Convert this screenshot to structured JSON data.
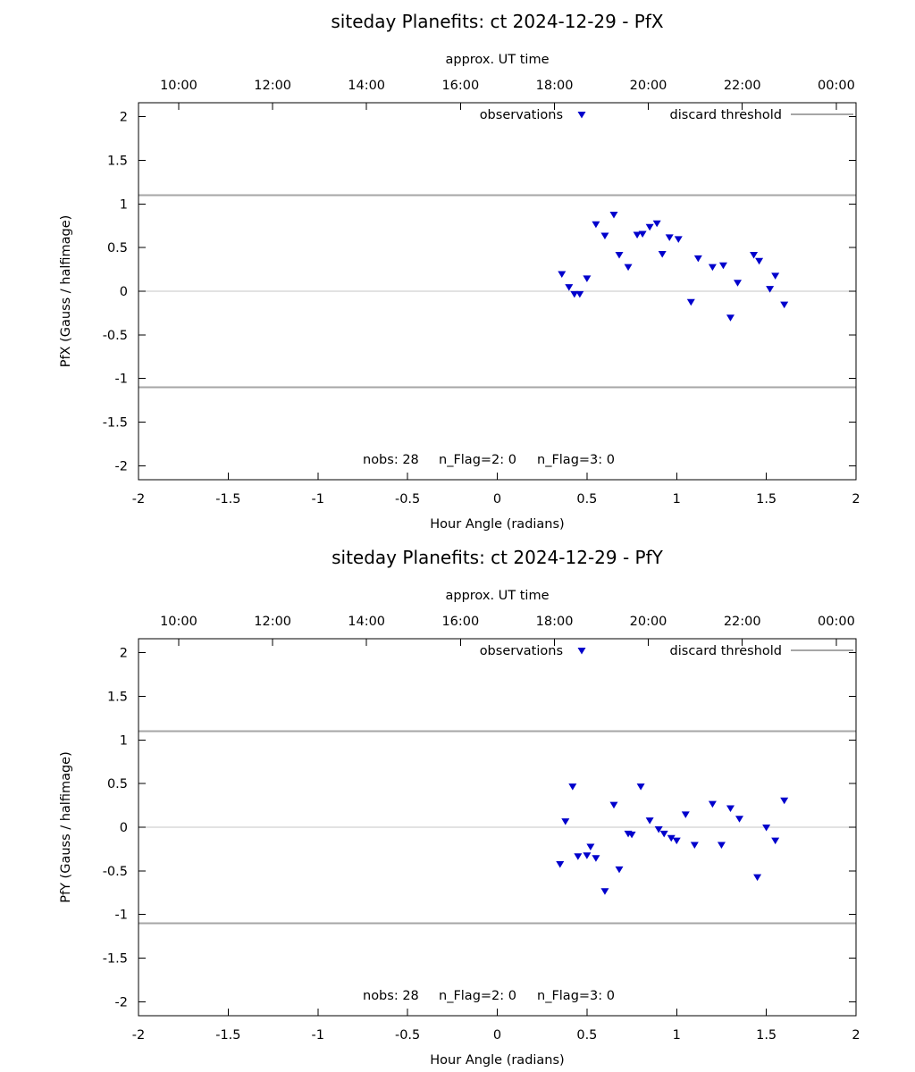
{
  "page": {
    "background": "#ffffff"
  },
  "chart_data": [
    {
      "type": "scatter",
      "title": "siteday Planefits:  ct  2024-12-29  -  PfX",
      "top_axis_label": "approx. UT time",
      "top_ticks": [
        {
          "label": "10:00",
          "ha": -1.776
        },
        {
          "label": "12:00",
          "ha": -1.252
        },
        {
          "label": "14:00",
          "ha": -0.729
        },
        {
          "label": "16:00",
          "ha": -0.205
        },
        {
          "label": "18:00",
          "ha": 0.319
        },
        {
          "label": "20:00",
          "ha": 0.842
        },
        {
          "label": "22:00",
          "ha": 1.366
        },
        {
          "label": "00:00",
          "ha": 1.89
        }
      ],
      "xlabel": "Hour Angle (radians)",
      "ylabel": "PfX (Gauss / halfimage)",
      "xlim": [
        -2,
        2
      ],
      "ylim_display": [
        -2.16,
        2.16
      ],
      "xticks": [
        {
          "v": -2,
          "label": "-2"
        },
        {
          "v": -1.5,
          "label": "-1.5"
        },
        {
          "v": -1,
          "label": "-1"
        },
        {
          "v": -0.5,
          "label": "-0.5"
        },
        {
          "v": 0,
          "label": "0"
        },
        {
          "v": 0.5,
          "label": "0.5"
        },
        {
          "v": 1,
          "label": "1"
        },
        {
          "v": 1.5,
          "label": "1.5"
        },
        {
          "v": 2,
          "label": "2"
        }
      ],
      "yticks": [
        {
          "v": 2,
          "label": "2"
        },
        {
          "v": 1.5,
          "label": "1.5"
        },
        {
          "v": 1,
          "label": "1"
        },
        {
          "v": 0.5,
          "label": "0.5"
        },
        {
          "v": 0,
          "label": "0"
        },
        {
          "v": -0.5,
          "label": "-0.5"
        },
        {
          "v": -1,
          "label": "-1"
        },
        {
          "v": -1.5,
          "label": "-1.5"
        },
        {
          "v": -2,
          "label": "-2"
        }
      ],
      "thresholds": [
        1.1,
        -1.1
      ],
      "zero_line": 0,
      "legend": [
        {
          "label": "observations",
          "type": "marker"
        },
        {
          "label": "discard threshold",
          "type": "line"
        }
      ],
      "annotation_parts": [
        "nobs: 28",
        "n_Flag=2: 0",
        "n_Flag=3: 0"
      ],
      "marker_color": "#0000cc",
      "threshold_color": "#a6a6a6",
      "zero_line_color": "#c4c4c4",
      "points": [
        [
          0.36,
          0.2
        ],
        [
          0.4,
          0.05
        ],
        [
          0.43,
          -0.03
        ],
        [
          0.46,
          -0.03
        ],
        [
          0.5,
          0.15
        ],
        [
          0.55,
          0.77
        ],
        [
          0.6,
          0.64
        ],
        [
          0.65,
          0.88
        ],
        [
          0.68,
          0.42
        ],
        [
          0.73,
          0.28
        ],
        [
          0.78,
          0.65
        ],
        [
          0.81,
          0.66
        ],
        [
          0.85,
          0.74
        ],
        [
          0.89,
          0.78
        ],
        [
          0.92,
          0.43
        ],
        [
          0.96,
          0.62
        ],
        [
          1.01,
          0.6
        ],
        [
          1.08,
          -0.12
        ],
        [
          1.12,
          0.38
        ],
        [
          1.2,
          0.28
        ],
        [
          1.26,
          0.3
        ],
        [
          1.3,
          -0.3
        ],
        [
          1.34,
          0.1
        ],
        [
          1.43,
          0.42
        ],
        [
          1.46,
          0.35
        ],
        [
          1.52,
          0.03
        ],
        [
          1.55,
          0.18
        ],
        [
          1.6,
          -0.15
        ]
      ]
    },
    {
      "type": "scatter",
      "title": "siteday Planefits:  ct  2024-12-29  -  PfY",
      "top_axis_label": "approx. UT time",
      "top_ticks": [
        {
          "label": "10:00",
          "ha": -1.776
        },
        {
          "label": "12:00",
          "ha": -1.252
        },
        {
          "label": "14:00",
          "ha": -0.729
        },
        {
          "label": "16:00",
          "ha": -0.205
        },
        {
          "label": "18:00",
          "ha": 0.319
        },
        {
          "label": "20:00",
          "ha": 0.842
        },
        {
          "label": "22:00",
          "ha": 1.366
        },
        {
          "label": "00:00",
          "ha": 1.89
        }
      ],
      "xlabel": "Hour Angle (radians)",
      "ylabel": "PfY (Gauss / halfimage)",
      "xlim": [
        -2,
        2
      ],
      "ylim_display": [
        -2.16,
        2.16
      ],
      "xticks": [
        {
          "v": -2,
          "label": "-2"
        },
        {
          "v": -1.5,
          "label": "-1.5"
        },
        {
          "v": -1,
          "label": "-1"
        },
        {
          "v": -0.5,
          "label": "-0.5"
        },
        {
          "v": 0,
          "label": "0"
        },
        {
          "v": 0.5,
          "label": "0.5"
        },
        {
          "v": 1,
          "label": "1"
        },
        {
          "v": 1.5,
          "label": "1.5"
        },
        {
          "v": 2,
          "label": "2"
        }
      ],
      "yticks": [
        {
          "v": 2,
          "label": "2"
        },
        {
          "v": 1.5,
          "label": "1.5"
        },
        {
          "v": 1,
          "label": "1"
        },
        {
          "v": 0.5,
          "label": "0.5"
        },
        {
          "v": 0,
          "label": "0"
        },
        {
          "v": -0.5,
          "label": "-0.5"
        },
        {
          "v": -1,
          "label": "-1"
        },
        {
          "v": -1.5,
          "label": "-1.5"
        },
        {
          "v": -2,
          "label": "-2"
        }
      ],
      "thresholds": [
        1.1,
        -1.1
      ],
      "zero_line": 0,
      "legend": [
        {
          "label": "observations",
          "type": "marker"
        },
        {
          "label": "discard threshold",
          "type": "line"
        }
      ],
      "annotation_parts": [
        "nobs: 28",
        "n_Flag=2: 0",
        "n_Flag=3: 0"
      ],
      "marker_color": "#0000cc",
      "threshold_color": "#a6a6a6",
      "zero_line_color": "#c4c4c4",
      "points": [
        [
          0.35,
          -0.42
        ],
        [
          0.38,
          0.07
        ],
        [
          0.42,
          0.47
        ],
        [
          0.45,
          -0.33
        ],
        [
          0.5,
          -0.32
        ],
        [
          0.52,
          -0.22
        ],
        [
          0.55,
          -0.35
        ],
        [
          0.6,
          -0.73
        ],
        [
          0.65,
          0.26
        ],
        [
          0.68,
          -0.48
        ],
        [
          0.73,
          -0.07
        ],
        [
          0.75,
          -0.08
        ],
        [
          0.8,
          0.47
        ],
        [
          0.85,
          0.08
        ],
        [
          0.9,
          -0.02
        ],
        [
          0.93,
          -0.07
        ],
        [
          0.97,
          -0.12
        ],
        [
          1.0,
          -0.15
        ],
        [
          1.05,
          0.15
        ],
        [
          1.1,
          -0.2
        ],
        [
          1.2,
          0.27
        ],
        [
          1.25,
          -0.2
        ],
        [
          1.3,
          0.22
        ],
        [
          1.35,
          0.1
        ],
        [
          1.45,
          -0.57
        ],
        [
          1.5,
          0.0
        ],
        [
          1.55,
          -0.15
        ],
        [
          1.6,
          0.31
        ]
      ]
    }
  ]
}
